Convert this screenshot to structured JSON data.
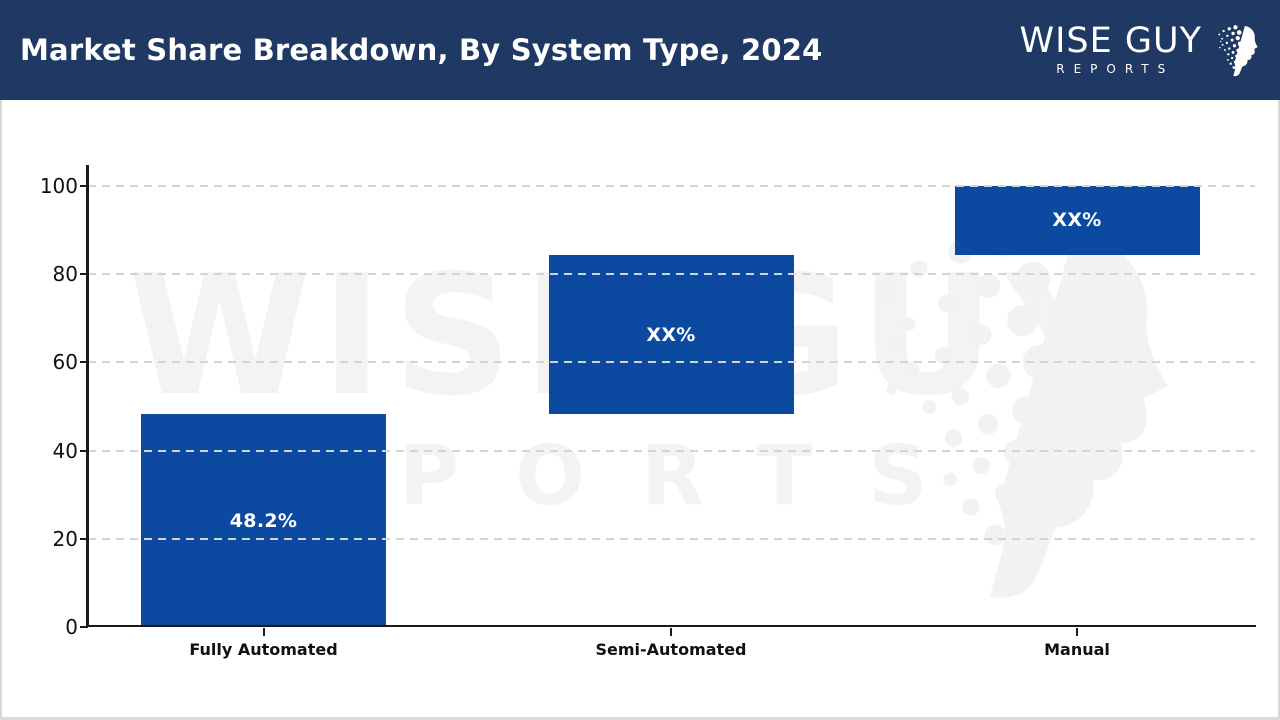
{
  "header": {
    "title": "Market Share Breakdown, By System Type, 2024",
    "logo": {
      "line1": "WISE GUY",
      "line2": "REPORTS"
    }
  },
  "watermark": {
    "line1": "WISE GUY",
    "line2": "REPORTS"
  },
  "colors": {
    "header_bg": "#1f3864",
    "bar": "#0b4aa0",
    "grid": "#d4d4d4",
    "axis": "#1a1a1a",
    "bar_label": "#ffffff",
    "title_text": "#ffffff",
    "watermark": "#f3f3f3"
  },
  "chart_data": {
    "type": "bar",
    "subtype": "stacked-waterfall",
    "title": "Market Share Breakdown, By System Type, 2024",
    "categories": [
      "Fully Automated",
      "Semi-Automated",
      "Manual"
    ],
    "segments": [
      {
        "category": "Fully Automated",
        "start": 0,
        "end": 48.2,
        "label": "48.2%"
      },
      {
        "category": "Semi-Automated",
        "start": 48.2,
        "end": 84.4,
        "label": "XX%"
      },
      {
        "category": "Manual",
        "start": 84.4,
        "end": 100,
        "label": "XX%"
      }
    ],
    "yticks": [
      0,
      20,
      40,
      60,
      80,
      100
    ],
    "ylim": [
      0,
      105
    ],
    "xlabel": "",
    "ylabel": "",
    "grid": "dashed-horizontal",
    "legend": null
  }
}
